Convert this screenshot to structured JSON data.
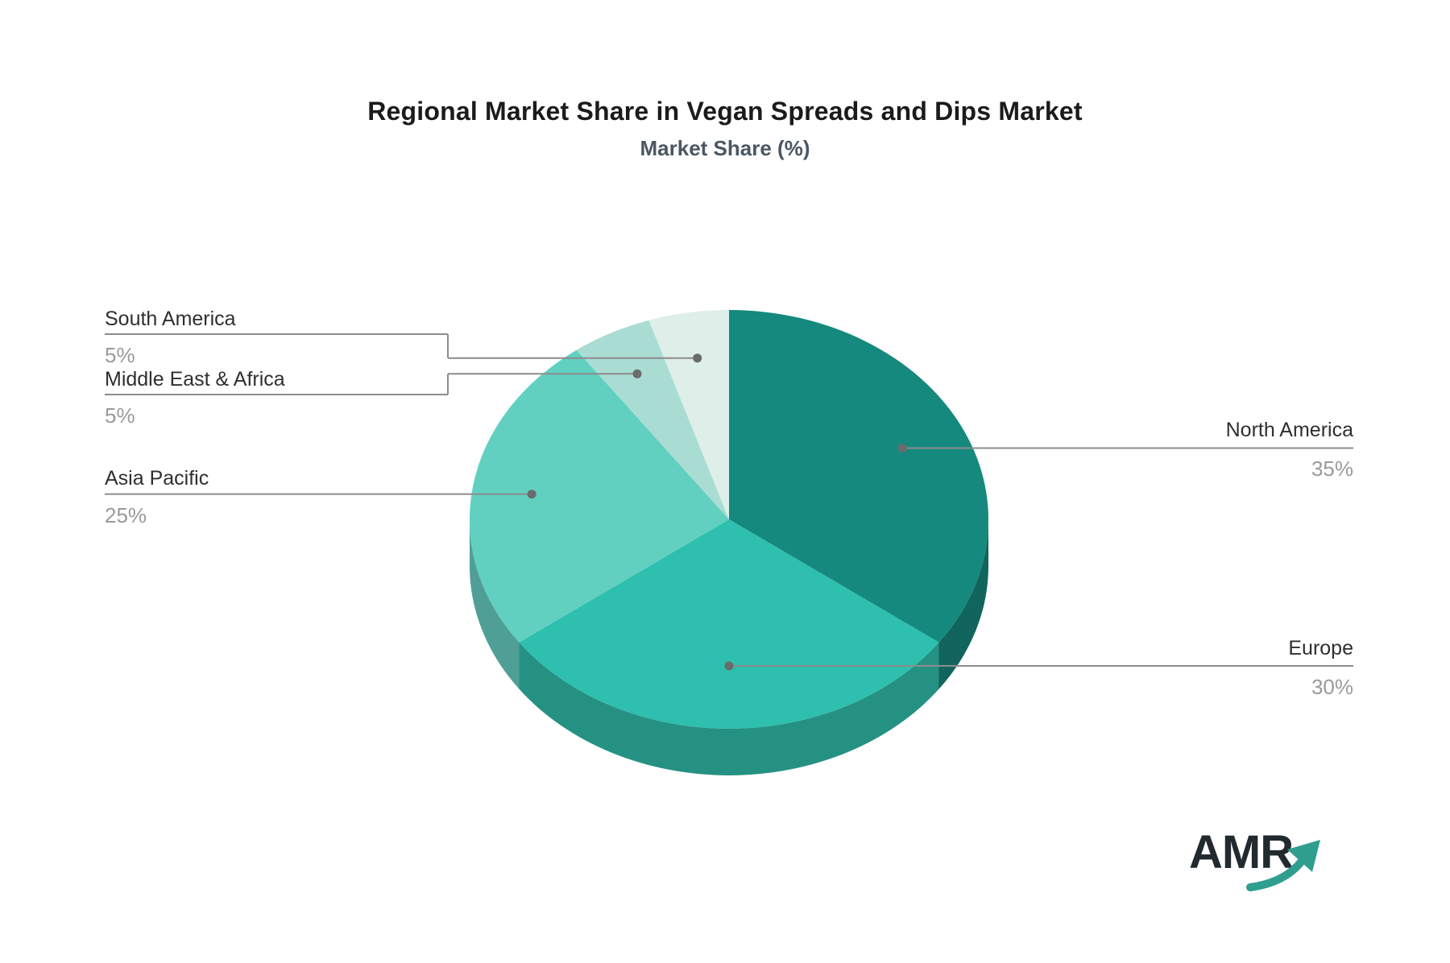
{
  "title": "Regional Market Share in Vegan Spreads and Dips Market",
  "subtitle": "Market Share (%)",
  "logo": {
    "text": "AMR"
  },
  "colors": {
    "background": "#ffffff",
    "title": "#1b1b1b",
    "subtitle": "#4a5763",
    "label": "#2f2f2f",
    "pct": "#9a9a9a",
    "line": "#8c8c8c",
    "dot": "#6b6b6b",
    "logo_text": "#212a2e",
    "logo_arrow": "#2f9e8f"
  },
  "chart_data": {
    "type": "pie",
    "title": "Regional Market Share in Vegan Spreads and Dips Market",
    "subtitle": "Market Share (%)",
    "unit": "%",
    "start_angle_deg": 0,
    "direction": "clockwise",
    "depth_3d": true,
    "legend": "none",
    "slices": [
      {
        "label": "North America",
        "value": 35,
        "pct_label": "35%",
        "color": "#16897e",
        "side_color": "#11655c"
      },
      {
        "label": "Europe",
        "value": 30,
        "pct_label": "30%",
        "color": "#2ebfae",
        "side_color": "#259183"
      },
      {
        "label": "Asia Pacific",
        "value": 25,
        "pct_label": "25%",
        "color": "#61d0c1",
        "side_color": "#4f9f96"
      },
      {
        "label": "Middle East & Africa",
        "value": 5,
        "pct_label": "5%",
        "color": "#a9ddd3",
        "side_color": "#87b1a9"
      },
      {
        "label": "South America",
        "value": 5,
        "pct_label": "5%",
        "color": "#deeee9",
        "side_color": "#b2c6c1"
      }
    ]
  }
}
